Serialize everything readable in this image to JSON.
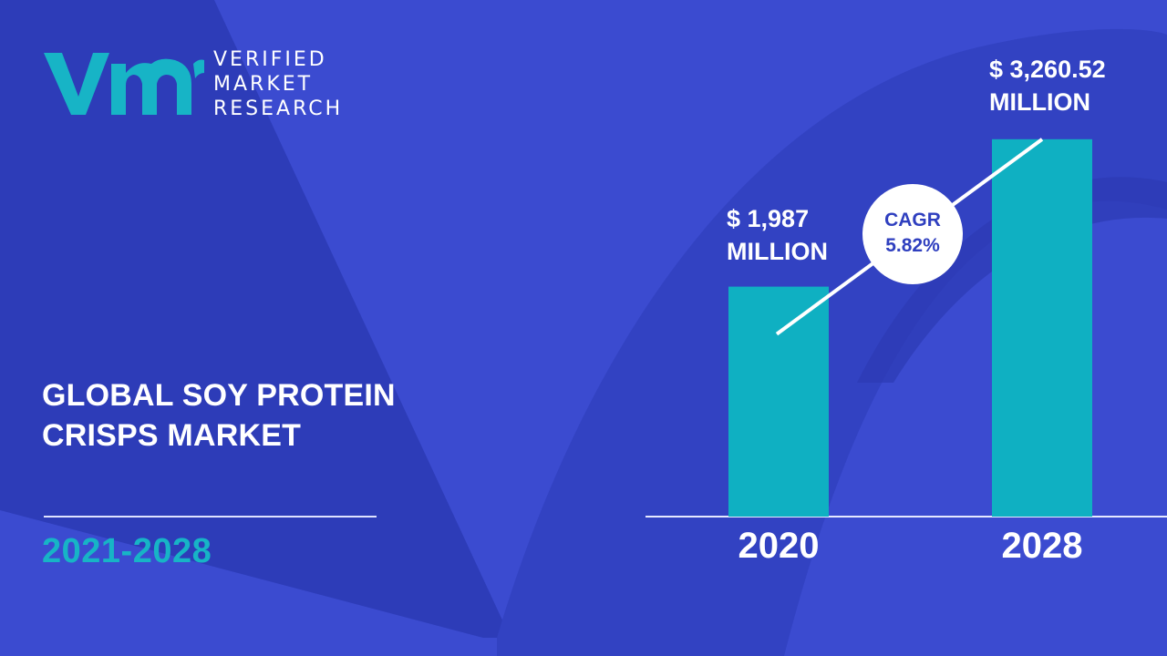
{
  "brand": {
    "name_lines": [
      "VERIFIED",
      "MARKET",
      "RESEARCH"
    ],
    "logo_letters": "vmr",
    "colors": {
      "teal": "#17b4c6",
      "background": "#3b4bd0",
      "bar": "#0fb0c2"
    }
  },
  "report": {
    "title_lines": [
      "GLOBAL SOY PROTEIN",
      "CRISPS MARKET"
    ],
    "period": "2021-2028"
  },
  "cagr": {
    "label": "CAGR",
    "value": "5.82%"
  },
  "chart_data": {
    "type": "bar",
    "categories": [
      "2020",
      "2028"
    ],
    "values": [
      1987,
      3260.52
    ],
    "value_labels": [
      [
        "$ 1,987",
        "MILLION"
      ],
      [
        "$ 3,260.52",
        "MILLION"
      ]
    ],
    "unit": "USD million",
    "ylim": [
      0,
      3700
    ],
    "grid": false,
    "legend": "none",
    "trend_line": true,
    "bar_color": "#0fb0c2"
  }
}
